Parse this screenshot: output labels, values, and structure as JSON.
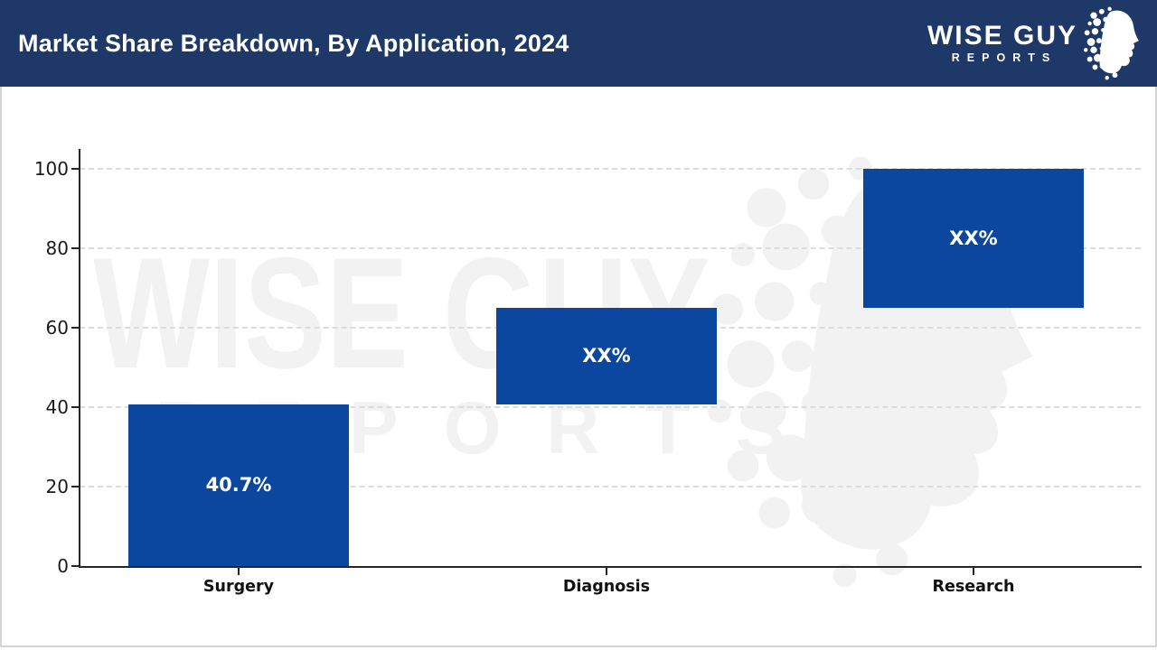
{
  "header": {
    "title": "Market Share Breakdown, By Application, 2024",
    "logo": {
      "line1": "WISE GUY",
      "line2": "REPORTS"
    }
  },
  "watermark": {
    "line1": "WISE GUY",
    "line2": "REPORTS"
  },
  "chart_data": {
    "type": "bar",
    "subtype": "waterfall",
    "title": "Market Share Breakdown, By Application, 2024",
    "categories": [
      "Surgery",
      "Diagnosis",
      "Research"
    ],
    "segments": [
      {
        "category": "Surgery",
        "start": 0,
        "end": 40.7,
        "label": "40.7%"
      },
      {
        "category": "Diagnosis",
        "start": 40.7,
        "end": 65,
        "label": "XX%"
      },
      {
        "category": "Research",
        "start": 65,
        "end": 100,
        "label": "XX%"
      }
    ],
    "yticks": [
      0,
      20,
      40,
      60,
      80,
      100
    ],
    "ylim": [
      0,
      105
    ],
    "xlabel": "",
    "ylabel": "",
    "grid": "dashed-horizontal",
    "legend": "none",
    "bar_color": "#0b479f",
    "bar_label_color": "#ffffff",
    "colors": {
      "header_bg": "#1e3968",
      "axis": "#262626",
      "gridline": "#dcdcdc",
      "watermark": "#f2f2f2",
      "page_border": "#d4d4d4",
      "tick_text": "#1a1a1a"
    }
  }
}
